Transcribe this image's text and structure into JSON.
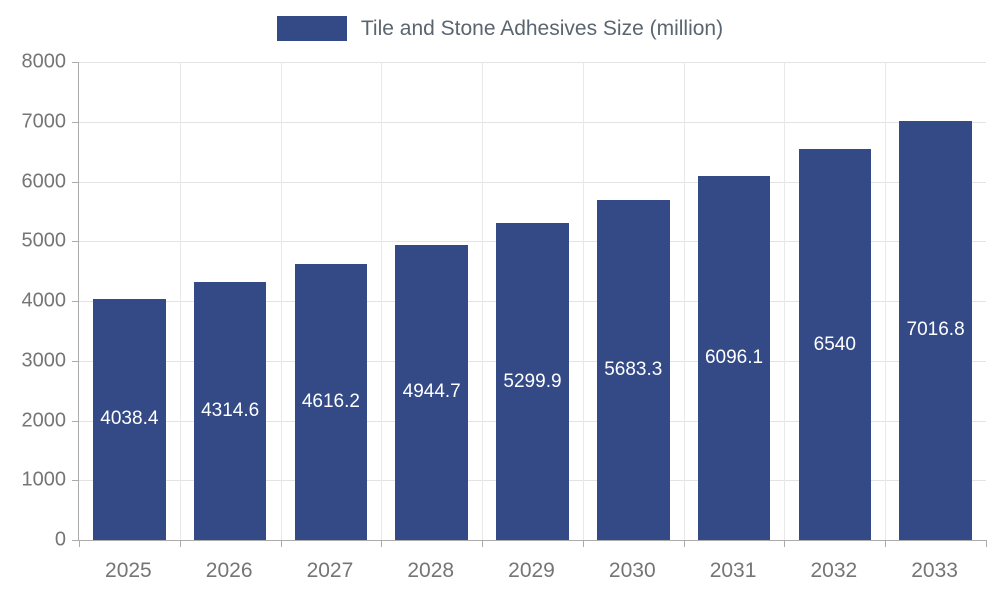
{
  "legend": {
    "label": "Tile and Stone Adhesives Size (million)"
  },
  "chart_data": {
    "type": "bar",
    "title": "Tile and Stone Adhesives Size (million)",
    "categories": [
      "2025",
      "2026",
      "2027",
      "2028",
      "2029",
      "2030",
      "2031",
      "2032",
      "2033"
    ],
    "values": [
      4038.4,
      4314.6,
      4616.2,
      4944.7,
      5299.9,
      5683.3,
      6096.1,
      6540,
      7016.8
    ],
    "xlabel": "",
    "ylabel": "",
    "ylim": [
      0,
      8000
    ],
    "yticks": [
      0,
      1000,
      2000,
      3000,
      4000,
      5000,
      6000,
      7000,
      8000
    ],
    "grid": true,
    "legend_position": "top",
    "bar_color": "#344a87",
    "value_label_color": "#ffffff",
    "axis_text_color": "#757575"
  }
}
